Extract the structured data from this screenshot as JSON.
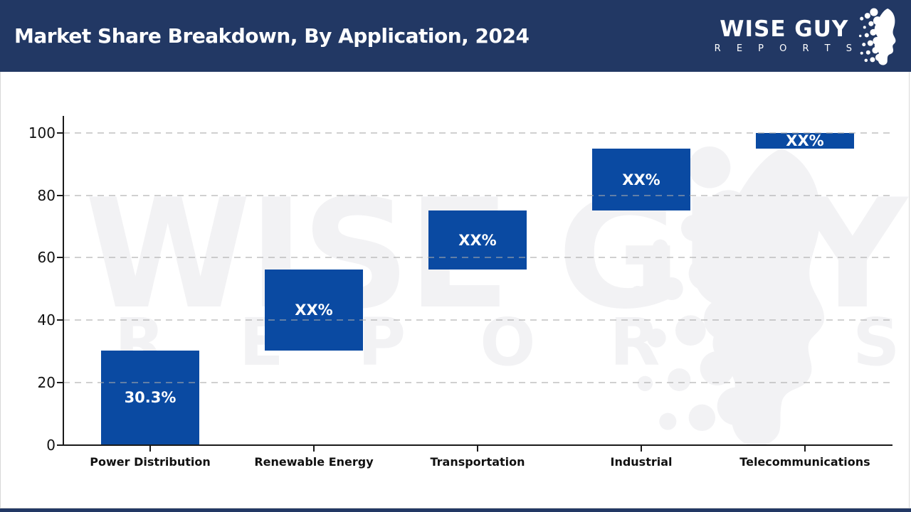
{
  "header": {
    "title": "Market Share Breakdown, By Application, 2024",
    "logo": {
      "line1": "WISE GUY",
      "line2": "R E P O R T S"
    }
  },
  "watermark": {
    "line1": "WISE GUY",
    "line2": "R E P O R T S"
  },
  "colors": {
    "header_bg": "#223864",
    "bar": "#0a4aa2",
    "bar_label": "#ffffff",
    "axis": "#1a1a1a",
    "grid": "#bcbcbc",
    "category_label": "#111111",
    "watermark": "#f2f2f4"
  },
  "chart_data": {
    "type": "bar",
    "subtype": "waterfall-breakdown",
    "title": "Market Share Breakdown, By Application, 2024",
    "categories": [
      "Power Distribution",
      "Renewable Energy",
      "Transportation",
      "Industrial",
      "Telecommunications"
    ],
    "segments": [
      {
        "category": "Power Distribution",
        "start": 0,
        "end": 30.3,
        "label": "30.3%"
      },
      {
        "category": "Renewable Energy",
        "start": 30.3,
        "end": 56.2,
        "label": "XX%"
      },
      {
        "category": "Transportation",
        "start": 56.2,
        "end": 75.1,
        "label": "XX%"
      },
      {
        "category": "Industrial",
        "start": 75.1,
        "end": 94.9,
        "label": "XX%"
      },
      {
        "category": "Telecommunications",
        "start": 94.9,
        "end": 100,
        "label": "XX%"
      }
    ],
    "xlabel": "",
    "ylabel": "",
    "ylim": [
      0,
      105
    ],
    "yticks": [
      0,
      20,
      40,
      60,
      80,
      100
    ],
    "grid": "dashed-horizontal",
    "legend": "none"
  }
}
